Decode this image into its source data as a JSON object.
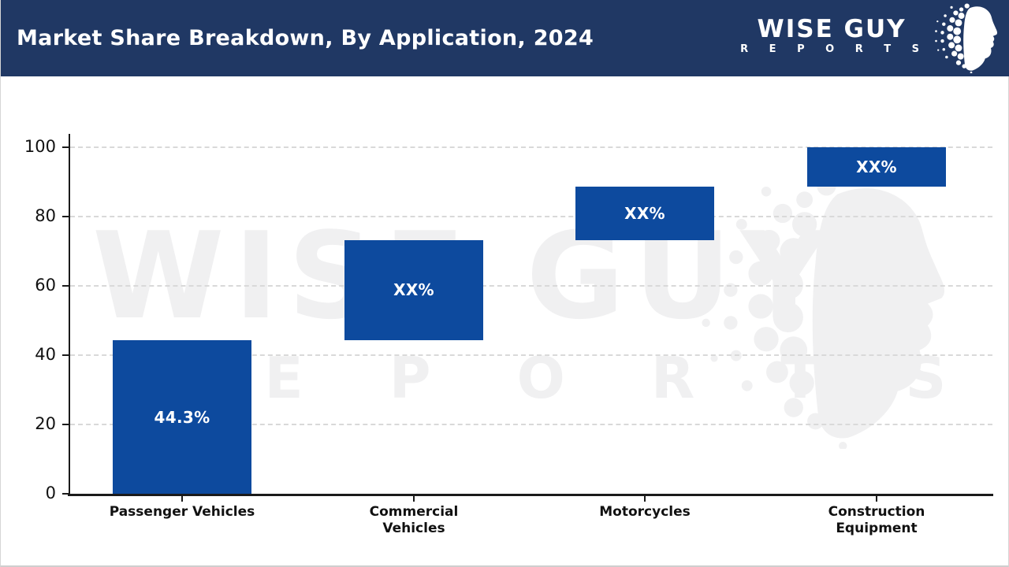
{
  "header": {
    "title": "Market Share Breakdown, By Application, 2024",
    "background": "#203864",
    "text_color": "#ffffff",
    "logo": {
      "line1": "WISE GUY",
      "line2": "R E P O R T S"
    }
  },
  "watermark": {
    "line1": "WISE GUY",
    "line2": "R E P O R T S",
    "color": "#f0f0f1"
  },
  "chart_data": {
    "type": "bar",
    "subtype": "waterfall",
    "title": "Market Share Breakdown, By Application, 2024",
    "categories": [
      "Passenger Vehicles",
      "Commercial\nVehicles",
      "Motorcycles",
      "Construction\nEquipment"
    ],
    "segments": [
      {
        "category": "Passenger Vehicles",
        "label": "44.3%",
        "start": 0,
        "end": 44.3,
        "value": 44.3
      },
      {
        "category": "Commercial Vehicles",
        "label": "XX%",
        "start": 44.3,
        "end": 73.2,
        "value_masked": true,
        "value_estimate": 28.9
      },
      {
        "category": "Motorcycles",
        "label": "XX%",
        "start": 73.2,
        "end": 88.6,
        "value_masked": true,
        "value_estimate": 15.4
      },
      {
        "category": "Construction Equipment",
        "label": "XX%",
        "start": 88.6,
        "end": 100.0,
        "value_masked": true,
        "value_estimate": 11.4
      }
    ],
    "ylim": [
      0,
      100
    ],
    "yticks": [
      0,
      20,
      40,
      60,
      80,
      100
    ],
    "grid": "horizontal dashed, hidden at 0",
    "legend": "none",
    "bar_color": "#0d4a9e",
    "bar_label_color": "#ffffff",
    "axis_color": "#1a1a1a",
    "gridline_color": "#d9d9d9"
  }
}
